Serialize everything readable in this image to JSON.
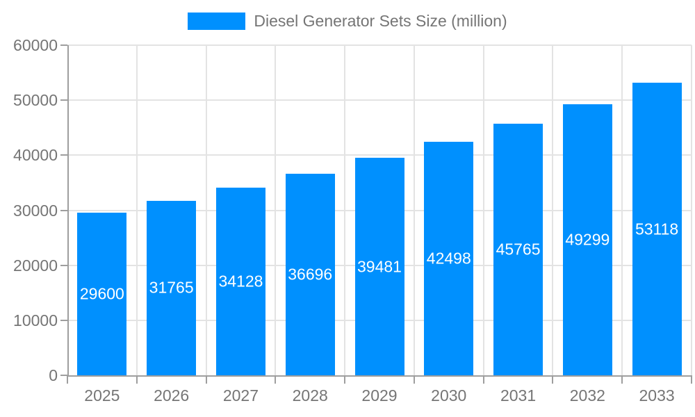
{
  "chart_data": {
    "type": "bar",
    "title": "",
    "legend": {
      "position": "top",
      "entries": [
        {
          "label": "Diesel Generator Sets Size (million)",
          "color": "#0090fe"
        }
      ]
    },
    "categories": [
      "2025",
      "2026",
      "2027",
      "2028",
      "2029",
      "2030",
      "2031",
      "2032",
      "2033"
    ],
    "series": [
      {
        "name": "Diesel Generator Sets Size (million)",
        "values": [
          29600,
          31765,
          34128,
          36696,
          39481,
          42498,
          45765,
          49299,
          53118
        ]
      }
    ],
    "value_labels_visible": true,
    "xlabel": "",
    "ylabel": "",
    "ylim": [
      0,
      60000
    ],
    "ytick_step": 10000,
    "ytick_labels": [
      "0",
      "10000",
      "20000",
      "30000",
      "40000",
      "50000",
      "60000"
    ],
    "grid": true,
    "colors": {
      "bar": "#0090fe",
      "bar_value_text": "#ffffff",
      "axis_text": "#757575",
      "legend_text": "#757575",
      "axis_line": "#9e9e9e",
      "gridline": "#e3e3e3",
      "background": "#ffffff"
    }
  }
}
